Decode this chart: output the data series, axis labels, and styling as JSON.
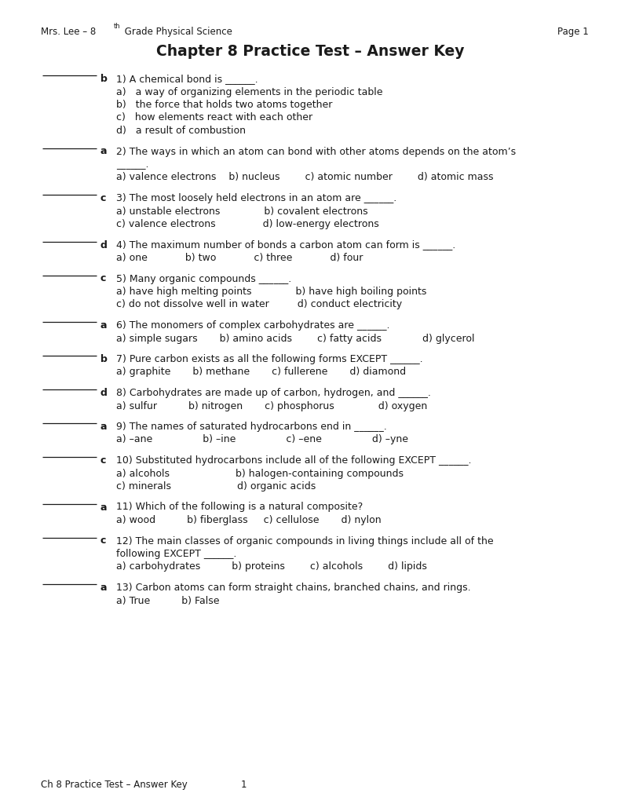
{
  "header_left_pre": "Mrs. Lee – 8",
  "header_left_sup": "th",
  "header_left_post": " Grade Physical Science",
  "header_right": "Page 1",
  "title": "Chapter 8 Practice Test – Answer Key",
  "footer": "Ch 8 Practice Test – Answer Key",
  "footer_page": "1",
  "bg_color": "#ffffff",
  "text_color": "#1a1a1a",
  "questions": [
    {
      "answer": "b",
      "lines": [
        "1) A chemical bond is ______.",
        "a)   a way of organizing elements in the periodic table",
        "b)   the force that holds two atoms together",
        "c)   how elements react with each other",
        "d)   a result of combustion"
      ]
    },
    {
      "answer": "a",
      "lines": [
        "2) The ways in which an atom can bond with other atoms depends on the atom’s",
        "______.",
        "a) valence electrons    b) nucleus        c) atomic number        d) atomic mass"
      ]
    },
    {
      "answer": "c",
      "lines": [
        "3) The most loosely held electrons in an atom are ______.",
        "a) unstable electrons              b) covalent electrons",
        "c) valence electrons               d) low-energy electrons"
      ]
    },
    {
      "answer": "d",
      "lines": [
        "4) The maximum number of bonds a carbon atom can form is ______.",
        "a) one            b) two            c) three            d) four"
      ]
    },
    {
      "answer": "c",
      "lines": [
        "5) Many organic compounds ______.",
        "a) have high melting points              b) have high boiling points",
        "c) do not dissolve well in water         d) conduct electricity"
      ]
    },
    {
      "answer": "a",
      "lines": [
        "6) The monomers of complex carbohydrates are ______.",
        "a) simple sugars       b) amino acids        c) fatty acids             d) glycerol"
      ]
    },
    {
      "answer": "b",
      "lines": [
        "7) Pure carbon exists as all the following forms EXCEPT ______.",
        "a) graphite       b) methane       c) fullerene       d) diamond"
      ]
    },
    {
      "answer": "d",
      "lines": [
        "8) Carbohydrates are made up of carbon, hydrogen, and ______.",
        "a) sulfur          b) nitrogen       c) phosphorus              d) oxygen"
      ]
    },
    {
      "answer": "a",
      "lines": [
        "9) The names of saturated hydrocarbons end in ______.",
        "a) –ane                b) –ine                c) –ene                d) –yne"
      ]
    },
    {
      "answer": "c",
      "lines": [
        "10) Substituted hydrocarbons include all of the following EXCEPT ______.",
        "a) alcohols                     b) halogen-containing compounds",
        "c) minerals                     d) organic acids"
      ]
    },
    {
      "answer": "a",
      "lines": [
        "11) Which of the following is a natural composite?",
        "a) wood          b) fiberglass     c) cellulose       d) nylon"
      ]
    },
    {
      "answer": "c",
      "lines": [
        "12) The main classes of organic compounds in living things include all of the",
        "following EXCEPT ______.",
        "a) carbohydrates          b) proteins        c) alcohols        d) lipids"
      ]
    },
    {
      "answer": "a",
      "lines": [
        "13) Carbon atoms can form straight chains, branched chains, and rings.",
        "a) True          b) False"
      ]
    }
  ]
}
